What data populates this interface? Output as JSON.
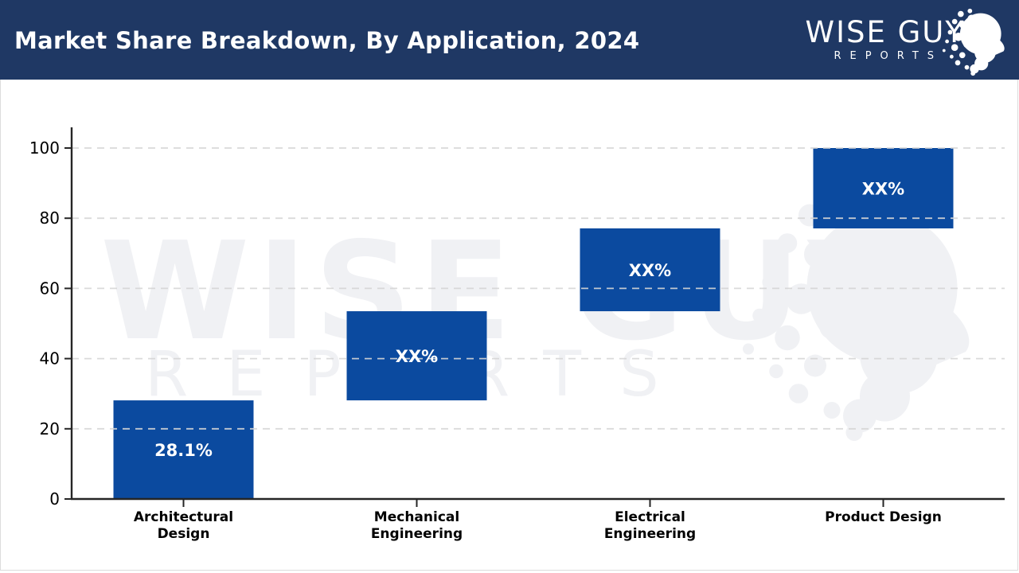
{
  "header": {
    "title": "Market Share Breakdown, By Application, 2024",
    "logo": {
      "line1": "WISE GUY",
      "line2": "REPORTS"
    }
  },
  "watermark": {
    "line1": "WISE GUY",
    "line2": "REPORTS"
  },
  "chart_data": {
    "type": "bar",
    "subtype": "waterfall",
    "title": "Market Share Breakdown, By Application, 2024",
    "categories": [
      "Architectural Design",
      "Mechanical Engineering",
      "Electrical Engineering",
      "Product Design"
    ],
    "category_label_lines": [
      [
        "Architectural",
        "Design"
      ],
      [
        "Mechanical",
        "Engineering"
      ],
      [
        "Electrical",
        "Engineering"
      ],
      [
        "Product Design"
      ]
    ],
    "segments": [
      {
        "category": "Architectural Design",
        "start": 0,
        "end": 28.1,
        "value_label": "28.1%"
      },
      {
        "category": "Mechanical Engineering",
        "start": 28.1,
        "end": 53.5,
        "value_label": "XX%"
      },
      {
        "category": "Electrical Engineering",
        "start": 53.5,
        "end": 77.1,
        "value_label": "XX%"
      },
      {
        "category": "Product Design",
        "start": 77.1,
        "end": 100,
        "value_label": "XX%"
      }
    ],
    "xlabel": "",
    "ylabel": "",
    "ylim": [
      0,
      100
    ],
    "yticks": [
      0,
      20,
      40,
      60,
      80,
      100
    ],
    "grid": "horizontal-dashed",
    "legend": "none"
  },
  "colors": {
    "header_bg": "#1f3864",
    "bar": "#0b4a9f",
    "bar_label": "#ffffff",
    "axis": "#262626",
    "gridline": "#d6d6d6",
    "tick_label": "#000000",
    "watermark": "#f0f1f4"
  }
}
